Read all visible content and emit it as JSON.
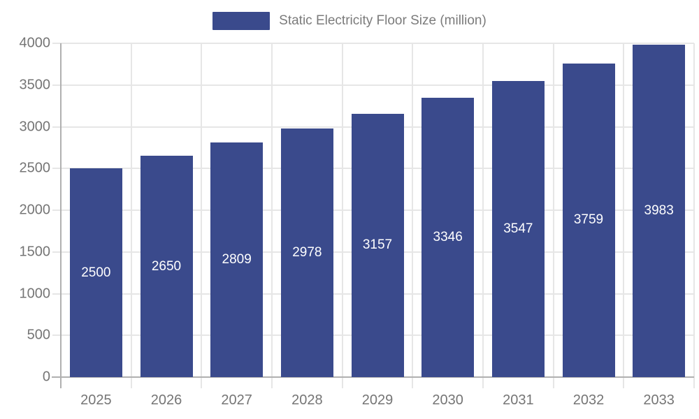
{
  "legend": {
    "label": "Static Electricity Floor Size (million)"
  },
  "colors": {
    "bar": "#3A4A8C",
    "bar_label": "#ffffff",
    "legend_text": "#7b7b7b",
    "axis_label": "#757575",
    "grid": "#e6e6e6",
    "axis_line": "#b0b0b0",
    "background": "#ffffff"
  },
  "chart_data": {
    "type": "bar",
    "title": "Static Electricity Floor Size (million)",
    "categories": [
      "2025",
      "2026",
      "2027",
      "2028",
      "2029",
      "2030",
      "2031",
      "2032",
      "2033"
    ],
    "values": [
      2500,
      2650,
      2809,
      2978,
      3157,
      3346,
      3547,
      3759,
      3983
    ],
    "xlabel": "",
    "ylabel": "",
    "ylim": [
      0,
      4000
    ],
    "yticks": [
      0,
      500,
      1000,
      1500,
      2000,
      2500,
      3000,
      3500,
      4000
    ],
    "grid": true,
    "legend_position": "top-center",
    "bar_label_position": "inside-center"
  }
}
